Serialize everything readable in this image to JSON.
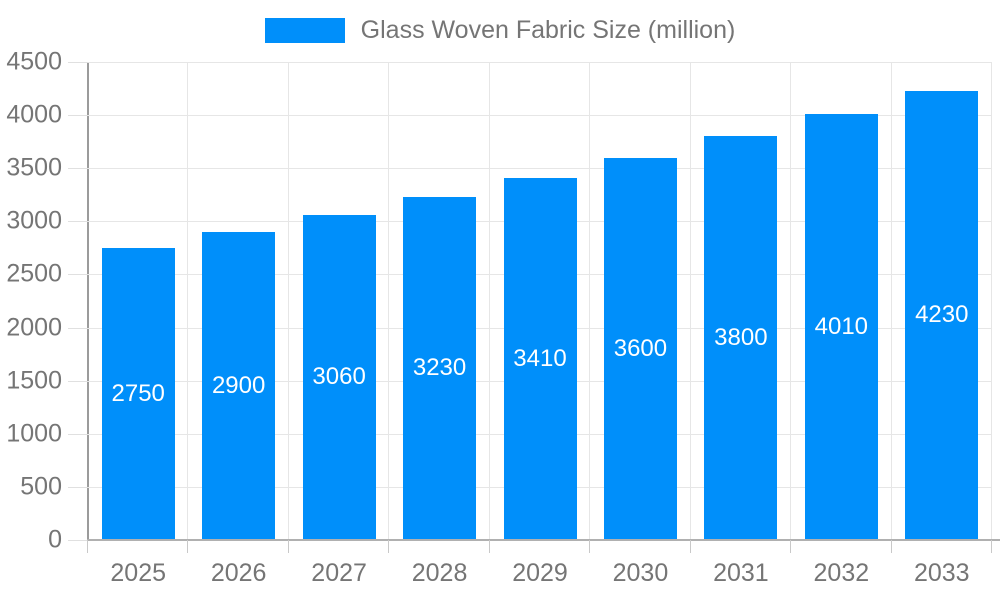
{
  "legend": {
    "label": "Glass Woven Fabric Size (million)"
  },
  "chart_data": {
    "type": "bar",
    "title": "Glass Woven Fabric Size (million)",
    "categories": [
      "2025",
      "2026",
      "2027",
      "2028",
      "2029",
      "2030",
      "2031",
      "2032",
      "2033"
    ],
    "series": [
      {
        "name": "Glass Woven Fabric Size (million)",
        "values": [
          2750,
          2900,
          3060,
          3230,
          3410,
          3600,
          3800,
          4010,
          4230
        ]
      }
    ],
    "value_labels": [
      "2750",
      "2900",
      "3060",
      "3230",
      "3410",
      "3600",
      "3800",
      "4010",
      "4230"
    ],
    "xlabel": "",
    "ylabel": "",
    "ylim": [
      0,
      4500
    ],
    "ytick_step": 500,
    "yticks": [
      "0",
      "500",
      "1000",
      "1500",
      "2000",
      "2500",
      "3000",
      "3500",
      "4000",
      "4500"
    ],
    "grid": true,
    "legend_position": "top-center",
    "colors": {
      "bar": "#008FFA",
      "value_label": "#ffffff",
      "axis_text": "#757575",
      "gridline": "#e6e6e6",
      "axis_line": "#9b9b9b"
    }
  }
}
